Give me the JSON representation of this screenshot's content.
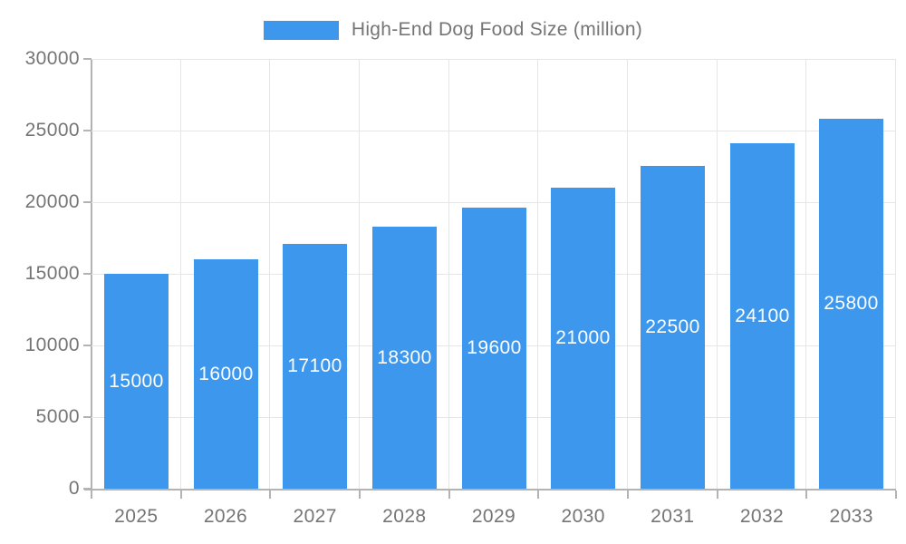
{
  "legend": {
    "label": "High-End Dog Food Size (million)"
  },
  "colors": {
    "bar": "#3d97ed",
    "grid": "#e6e6e6",
    "axis": "#b3b3b3",
    "text": "#757575",
    "value_label": "#ffffff"
  },
  "chart_data": {
    "type": "bar",
    "title": "High-End Dog Food Size (million)",
    "categories": [
      "2025",
      "2026",
      "2027",
      "2028",
      "2029",
      "2030",
      "2031",
      "2032",
      "2033"
    ],
    "values": [
      15000,
      16000,
      17100,
      18300,
      19600,
      21000,
      22500,
      24100,
      25800
    ],
    "xlabel": "",
    "ylabel": "",
    "ylim": [
      0,
      30000
    ],
    "ytick_step": 5000,
    "yticks": [
      0,
      5000,
      10000,
      15000,
      20000,
      25000,
      30000
    ],
    "grid": true,
    "legend_position": "top-center",
    "value_labels": "inside-center"
  }
}
